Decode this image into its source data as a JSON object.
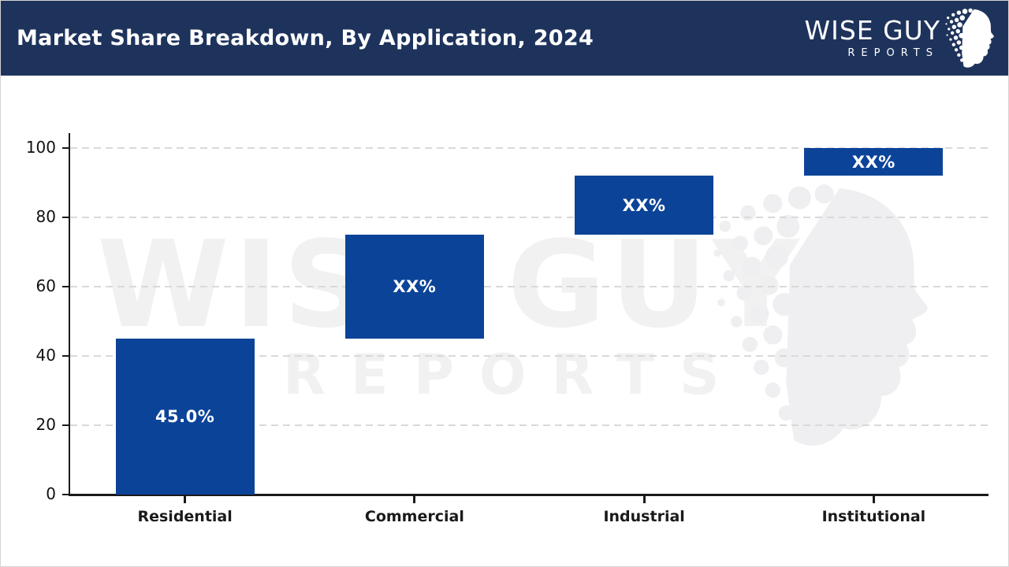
{
  "header": {
    "title": "Market Share Breakdown, By Application, 2024",
    "logo": {
      "wordmark": "WISE GUY",
      "subtext": "REPORTS"
    }
  },
  "watermark": {
    "line1": "WISE GUY",
    "line2": "REPORTS"
  },
  "chart_data": {
    "type": "bar",
    "subtype": "waterfall",
    "title": "Market Share Breakdown, By Application, 2024",
    "categories": [
      "Residential",
      "Commercial",
      "Industrial",
      "Institutional"
    ],
    "bars": [
      {
        "category": "Residential",
        "start": 0,
        "end": 45,
        "value": 45,
        "label": "45.0%"
      },
      {
        "category": "Commercial",
        "start": 45,
        "end": 75,
        "value": 30,
        "label": "XX%"
      },
      {
        "category": "Industrial",
        "start": 75,
        "end": 92,
        "value": 17,
        "label": "XX%"
      },
      {
        "category": "Institutional",
        "start": 92,
        "end": 100,
        "value": 8,
        "label": "XX%"
      }
    ],
    "xlabel": "",
    "ylabel": "",
    "ylim": [
      0,
      100
    ],
    "yticks": [
      0,
      20,
      40,
      60,
      80,
      100
    ],
    "grid": "horizontal dashed",
    "legend": "none"
  },
  "colors": {
    "header_bg": "#1e335c",
    "bar": "#0b4398",
    "bar_label": "#ffffff",
    "axis": "#1a1a1a",
    "grid": "#d9d9d9",
    "watermark": "#f1f1f2",
    "background": "#ffffff"
  }
}
